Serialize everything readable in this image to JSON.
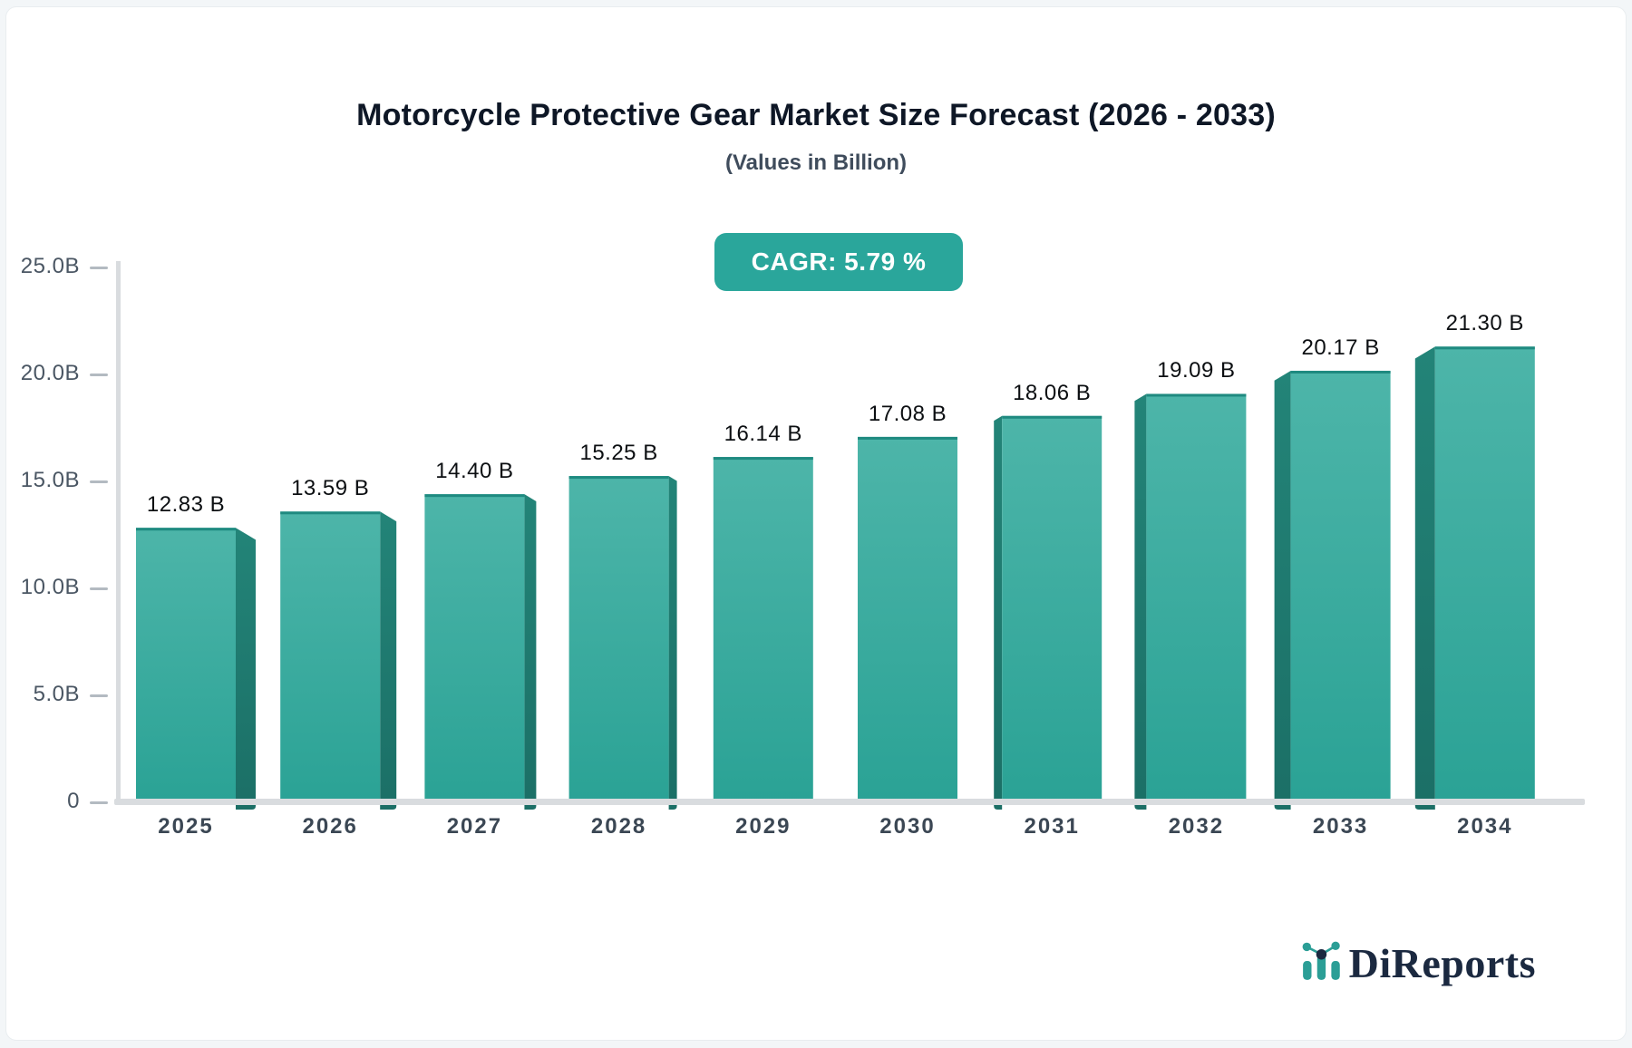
{
  "page": {
    "background_color": "#f3f6f8",
    "card_background": "#ffffff"
  },
  "header": {
    "title": "Motorcycle Protective Gear Market Size Forecast (2026 - 2033)",
    "subtitle": "(Values in Billion)"
  },
  "badge": {
    "label": "CAGR: 5.79 %",
    "background": "#2aa69b",
    "text_color": "#ffffff"
  },
  "chart_data": {
    "type": "bar",
    "title": "Motorcycle Protective Gear Market Size Forecast (2026 - 2033)",
    "subtitle": "(Values in Billion)",
    "categories": [
      "2025",
      "2026",
      "2027",
      "2028",
      "2029",
      "2030",
      "2031",
      "2032",
      "2033",
      "2034"
    ],
    "values": [
      12.83,
      13.59,
      14.4,
      15.25,
      16.14,
      17.08,
      18.06,
      19.09,
      20.17,
      21.3
    ],
    "value_labels": [
      "12.83 B",
      "13.59 B",
      "14.40 B",
      "15.25 B",
      "16.14 B",
      "17.08 B",
      "18.06 B",
      "19.09 B",
      "20.17 B",
      "21.30 B"
    ],
    "unit": "B",
    "xlabel": "",
    "ylabel": "",
    "ylim": [
      0,
      25
    ],
    "y_ticks": [
      {
        "value": 0,
        "label": "0"
      },
      {
        "value": 5,
        "label": "5.0B"
      },
      {
        "value": 10,
        "label": "10.0B"
      },
      {
        "value": 15,
        "label": "15.0B"
      },
      {
        "value": 20,
        "label": "20.0B"
      },
      {
        "value": 25,
        "label": "25.0B"
      }
    ],
    "grid": false,
    "legend": "none",
    "style": "3d-columns",
    "colors": {
      "bar_face_top": "#4db5a9",
      "bar_face_bottom": "#2aa295",
      "bar_side_top": "#238478",
      "bar_side_bottom": "#1b6f66",
      "bar_top_edge": "#1f8a80",
      "axis_line": "#d9dcdf",
      "tick_dash": "#b3bac1",
      "y_label_color": "#4a5663",
      "x_label_color": "#3b4754",
      "value_label_color": "#0c0f12"
    }
  },
  "logo": {
    "text": "DiReports",
    "icon": "bar-chart-logo-icon",
    "text_color": "#1b2940",
    "accent_color": "#2b9e96"
  }
}
